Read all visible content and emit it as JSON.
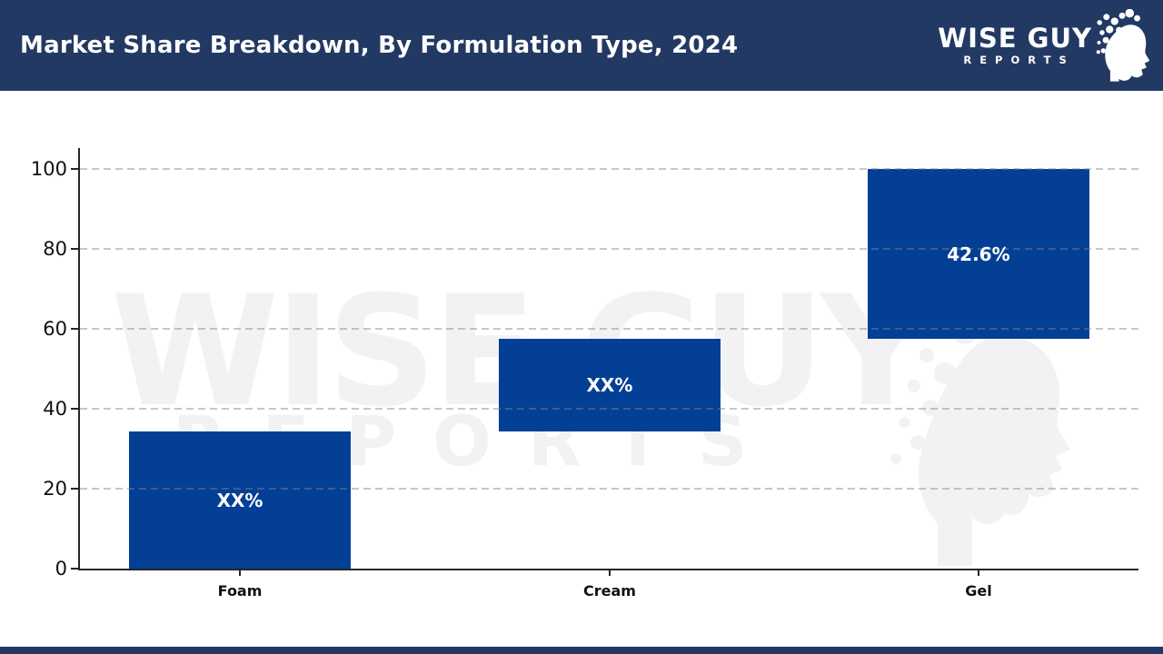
{
  "header": {
    "title": "Market Share Breakdown, By Formulation Type, 2024",
    "logo": {
      "line1": "WISE GUY",
      "line2": "REPORTS"
    }
  },
  "watermark": {
    "line1": "WISE GUY",
    "line2": "REPORTS"
  },
  "colors": {
    "header_bg": "#223963",
    "footer_bg": "#223963",
    "bar": "#043f96",
    "grid": "#d9d9d9",
    "axis": "#262626",
    "watermark": "#f2f2f4",
    "bar_label_text": "#ffffff",
    "title_text": "#ffffff"
  },
  "chart_data": {
    "type": "bar",
    "variant": "floating-waterfall",
    "title": "Market Share Breakdown, By Formulation Type, 2024",
    "categories": [
      "Foam",
      "Cream",
      "Gel"
    ],
    "segments": [
      {
        "category": "Foam",
        "start": 0,
        "end": 34.3,
        "value": 34.3,
        "label": "XX%"
      },
      {
        "category": "Cream",
        "start": 34.3,
        "end": 57.4,
        "value": 23.1,
        "label": "XX%"
      },
      {
        "category": "Gel",
        "start": 57.4,
        "end": 100,
        "value": 42.6,
        "label": "42.6%"
      }
    ],
    "yticks": [
      0,
      20,
      40,
      60,
      80,
      100
    ],
    "ylim": [
      0,
      105
    ],
    "xlabel": "",
    "ylabel": "",
    "grid": "dashed-horizontal",
    "legend": "none",
    "bar_color": "#043f96"
  }
}
